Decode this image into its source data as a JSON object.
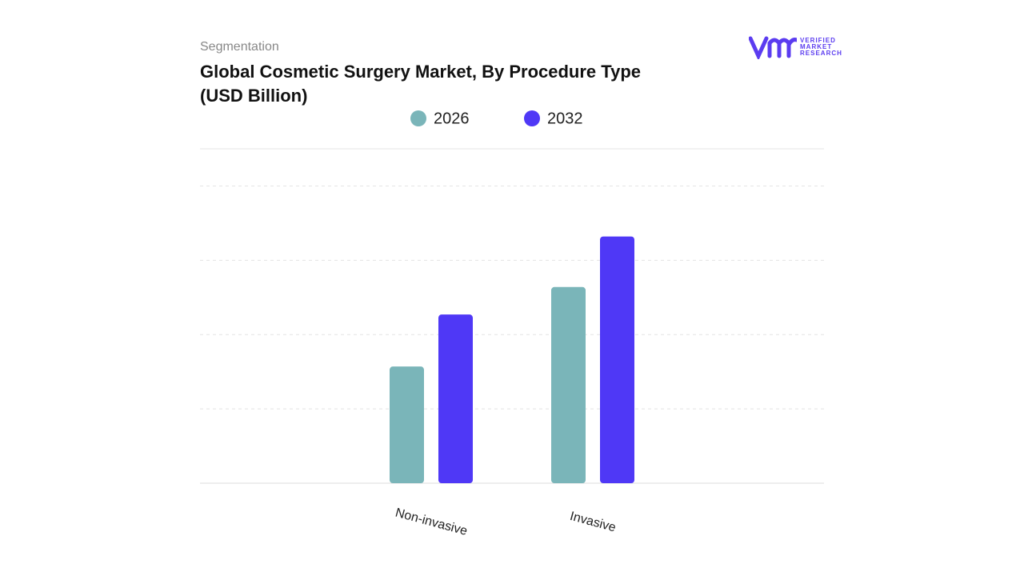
{
  "subtitle": "Segmentation",
  "logo": [
    "VERIFIED",
    "MARKET",
    "RESEARCH"
  ],
  "chart_data": {
    "type": "bar",
    "title": "Global Cosmetic Surgery Market, By Procedure Type (USD Billion)",
    "categories": [
      "Non-invasive",
      "Invasive"
    ],
    "series": [
      {
        "name": "2026",
        "color": "#7ab5b9",
        "values": [
          1.57,
          2.64
        ]
      },
      {
        "name": "2032",
        "color": "#4f38f6",
        "values": [
          2.27,
          3.32
        ]
      }
    ],
    "ylim": [
      0,
      4.5
    ],
    "yticks": [
      1,
      2,
      3,
      4
    ],
    "grid": true
  }
}
